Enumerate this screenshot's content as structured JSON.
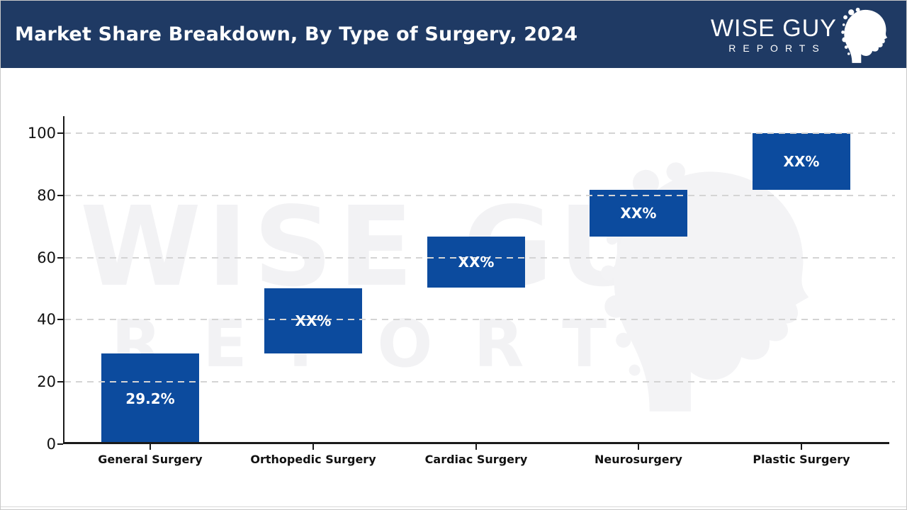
{
  "header": {
    "title": "Market Share Breakdown, By Type of Surgery, 2024"
  },
  "logo": {
    "line1": "WISE GUY",
    "line2": "REPORTS"
  },
  "watermark": {
    "line1": "WISE GUY",
    "line2": "REPORTS"
  },
  "chart_data": {
    "type": "bar",
    "subtype": "floating-segment-waterfall",
    "title": "Market Share Breakdown, By Type of Surgery, 2024",
    "categories": [
      "General Surgery",
      "Orthopedic Surgery",
      "Cardiac Surgery",
      "Neurosurgery",
      "Plastic Surgery"
    ],
    "segments": [
      {
        "category": "General Surgery",
        "start": 0,
        "end": 29.2,
        "label": "29.2%"
      },
      {
        "category": "Orthopedic Surgery",
        "start": 29.2,
        "end": 50.2,
        "label": "XX%"
      },
      {
        "category": "Cardiac Surgery",
        "start": 50.3,
        "end": 66.7,
        "label": "XX%"
      },
      {
        "category": "Neurosurgery",
        "start": 66.8,
        "end": 81.7,
        "label": "XX%"
      },
      {
        "category": "Plastic Surgery",
        "start": 81.8,
        "end": 100,
        "label": "XX%"
      }
    ],
    "yticks": [
      0,
      20,
      40,
      60,
      80,
      100
    ],
    "ylim": [
      0,
      105
    ],
    "xlabel": "",
    "ylabel": "",
    "grid": "dashed-horizontal",
    "legend": "none",
    "bar_color": "#0c4b9e",
    "bar_label_color": "#ffffff"
  },
  "colors": {
    "header_bg": "#1f3a64",
    "bar": "#0c4b9e",
    "grid": "#d4d4d4",
    "axis": "#1a1a1a",
    "watermark": "#f2f2f4"
  }
}
